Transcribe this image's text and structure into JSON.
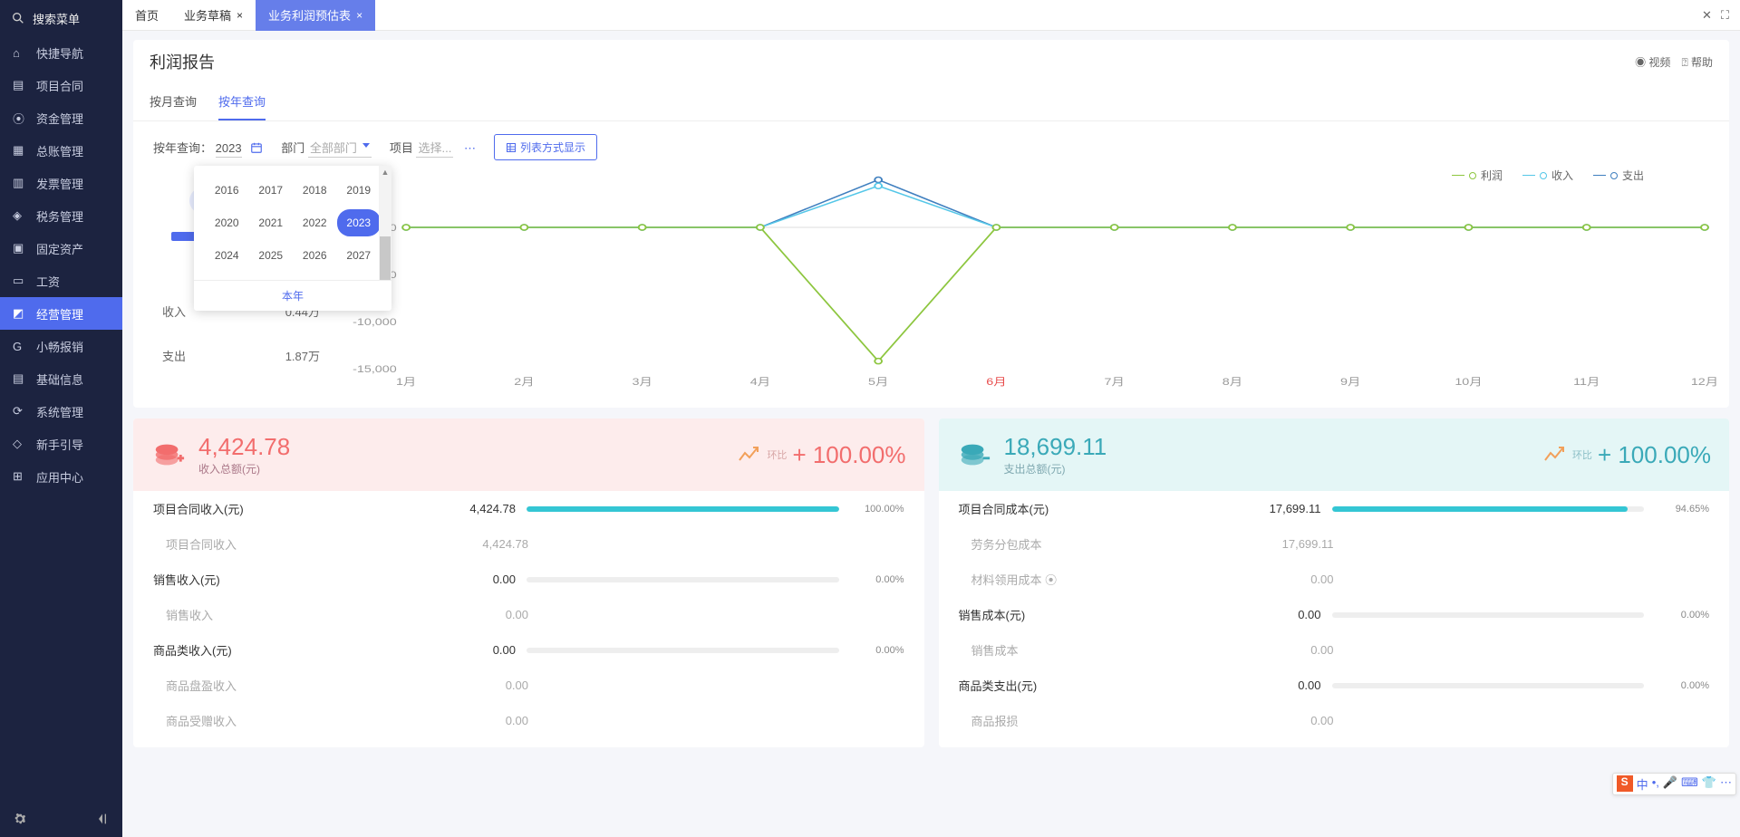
{
  "sidebar": {
    "search": "搜索菜单",
    "items": [
      {
        "label": "快捷导航"
      },
      {
        "label": "项目合同"
      },
      {
        "label": "资金管理"
      },
      {
        "label": "总账管理"
      },
      {
        "label": "发票管理"
      },
      {
        "label": "税务管理"
      },
      {
        "label": "固定资产"
      },
      {
        "label": "工资"
      },
      {
        "label": "经营管理"
      },
      {
        "label": "小畅报销"
      },
      {
        "label": "基础信息"
      },
      {
        "label": "系统管理"
      },
      {
        "label": "新手引导"
      },
      {
        "label": "应用中心"
      }
    ],
    "active_index": 8
  },
  "tabs": {
    "items": [
      {
        "label": "首页",
        "closable": false
      },
      {
        "label": "业务草稿",
        "closable": true
      },
      {
        "label": "业务利润预估表",
        "closable": true
      }
    ],
    "active_index": 2
  },
  "page": {
    "title": "利润报告",
    "help_video": "视频",
    "help_label": "帮助",
    "subtabs": [
      "按月查询",
      "按年查询"
    ],
    "active_subtab": 1
  },
  "filters": {
    "year_label": "按年查询：",
    "year_value": "2023",
    "dept_label": "部门",
    "dept_placeholder": "全部部门",
    "proj_label": "项目",
    "proj_placeholder": "选择...",
    "table_button": "列表方式显示"
  },
  "calendar": {
    "years": [
      "2016",
      "2017",
      "2018",
      "2019",
      "2020",
      "2021",
      "2022",
      "2023",
      "2024",
      "2025",
      "2026",
      "2027"
    ],
    "selected": "2023",
    "footer": "本年"
  },
  "left_panel": {
    "chip": "2",
    "rows": [
      {
        "label": "收入",
        "value": "0.44万"
      },
      {
        "label": "支出",
        "value": "1.87万"
      }
    ]
  },
  "chart": {
    "legend": [
      {
        "label": "利润",
        "color": "#8dc63f"
      },
      {
        "label": "收入",
        "color": "#55c7e8"
      },
      {
        "label": "支出",
        "color": "#3f7fbf"
      }
    ],
    "months": [
      "1月",
      "2月",
      "3月",
      "4月",
      "5月",
      "6月",
      "7月",
      "8月",
      "9月",
      "10月",
      "11月",
      "12月"
    ],
    "y_ticks": [
      "-15,000",
      "-10,000",
      "-5,000",
      "0"
    ],
    "y_range": [
      -15000,
      5000
    ],
    "highlight_month": 5,
    "series": {
      "profit": [
        0,
        0,
        0,
        0,
        -14200,
        0,
        0,
        0,
        0,
        0,
        0,
        0
      ],
      "income": [
        0,
        0,
        0,
        0,
        4400,
        0,
        0,
        0,
        0,
        0,
        0,
        0
      ],
      "expense": [
        0,
        0,
        0,
        0,
        18700,
        0,
        0,
        0,
        0,
        0,
        0,
        0
      ]
    },
    "axis_color": "#ddd",
    "text_color": "#999",
    "highlight_text_color": "#e84c4c"
  },
  "kpis": {
    "income": {
      "value": "4,424.78",
      "sub": "收入总额(元)",
      "trend": "+ 100.00%",
      "hb": "环比",
      "details": [
        {
          "label": "项目合同收入(元)",
          "value": "4,424.78",
          "pct": "100.00%",
          "fill": 100
        },
        {
          "label": "项目合同收入",
          "value": "4,424.78",
          "sub": true
        },
        {
          "label": "销售收入(元)",
          "value": "0.00",
          "pct": "0.00%",
          "fill": 0
        },
        {
          "label": "销售收入",
          "value": "0.00",
          "sub": true
        },
        {
          "label": "商品类收入(元)",
          "value": "0.00",
          "pct": "0.00%",
          "fill": 0
        },
        {
          "label": "商品盘盈收入",
          "value": "0.00",
          "sub": true
        },
        {
          "label": "商品受赠收入",
          "value": "0.00",
          "sub": true
        }
      ],
      "bar_color": "#34c6d4",
      "value_color": "#f26d6d",
      "bg_color": "#fdecec"
    },
    "expense": {
      "value": "18,699.11",
      "sub": "支出总额(元)",
      "trend": "+ 100.00%",
      "hb": "环比",
      "details": [
        {
          "label": "项目合同成本(元)",
          "value": "17,699.11",
          "pct": "94.65%",
          "fill": 94.65
        },
        {
          "label": "劳务分包成本",
          "value": "17,699.11",
          "sub": true
        },
        {
          "label": "材料领用成本 ⦿",
          "value": "0.00",
          "sub": true
        },
        {
          "label": "销售成本(元)",
          "value": "0.00",
          "pct": "0.00%",
          "fill": 0
        },
        {
          "label": "销售成本",
          "value": "0.00",
          "sub": true
        },
        {
          "label": "商品类支出(元)",
          "value": "0.00",
          "pct": "0.00%",
          "fill": 0
        },
        {
          "label": "商品报损",
          "value": "0.00",
          "sub": true
        }
      ],
      "bar_color": "#34c6d4",
      "value_color": "#3aa9b8",
      "bg_color": "#e4f6f6"
    }
  }
}
